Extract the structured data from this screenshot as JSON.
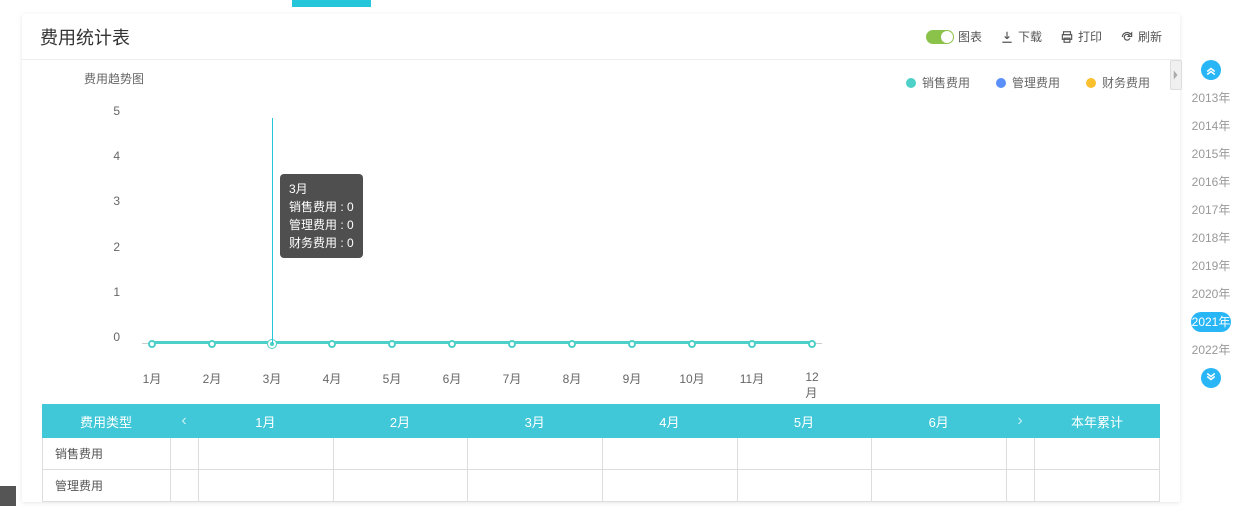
{
  "header": {
    "title": "费用统计表",
    "toggle_label": "图表",
    "download": "下载",
    "print": "打印",
    "refresh": "刷新"
  },
  "chart": {
    "type": "line",
    "title": "费用趋势图",
    "series": [
      {
        "name": "销售费用",
        "color": "#4dd0c7",
        "values": [
          0,
          0,
          0,
          0,
          0,
          0,
          0,
          0,
          0,
          0,
          0,
          0
        ]
      },
      {
        "name": "管理费用",
        "color": "#5b8ff9",
        "values": [
          0,
          0,
          0,
          0,
          0,
          0,
          0,
          0,
          0,
          0,
          0,
          0
        ]
      },
      {
        "name": "财务费用",
        "color": "#fbc02d",
        "values": [
          0,
          0,
          0,
          0,
          0,
          0,
          0,
          0,
          0,
          0,
          0,
          0
        ]
      }
    ],
    "categories": [
      "1月",
      "2月",
      "3月",
      "4月",
      "5月",
      "6月",
      "7月",
      "8月",
      "9月",
      "10月",
      "11月",
      "12月"
    ],
    "ylim": [
      0,
      5
    ],
    "ytick_step": 1,
    "label_fontsize": 12,
    "background_color": "#ffffff",
    "axis_color": "#cccccc",
    "hover_index": 2,
    "tooltip": {
      "title": "3月",
      "rows": [
        "销售费用 : 0",
        "管理费用 : 0",
        "财务费用 : 0"
      ]
    }
  },
  "table": {
    "type_header": "费用类型",
    "total_header": "本年累计",
    "months": [
      "1月",
      "2月",
      "3月",
      "4月",
      "5月",
      "6月"
    ],
    "rows": [
      {
        "label": "销售费用"
      },
      {
        "label": "管理费用"
      }
    ]
  },
  "years": {
    "items": [
      "2013年",
      "2014年",
      "2015年",
      "2016年",
      "2017年",
      "2018年",
      "2019年",
      "2020年",
      "2021年",
      "2022年"
    ],
    "selected": "2021年"
  },
  "colors": {
    "accent": "#26c6da",
    "table_header": "#41c8d8",
    "year_selected": "#29b6f6",
    "toggle_on": "#8bc34a"
  }
}
